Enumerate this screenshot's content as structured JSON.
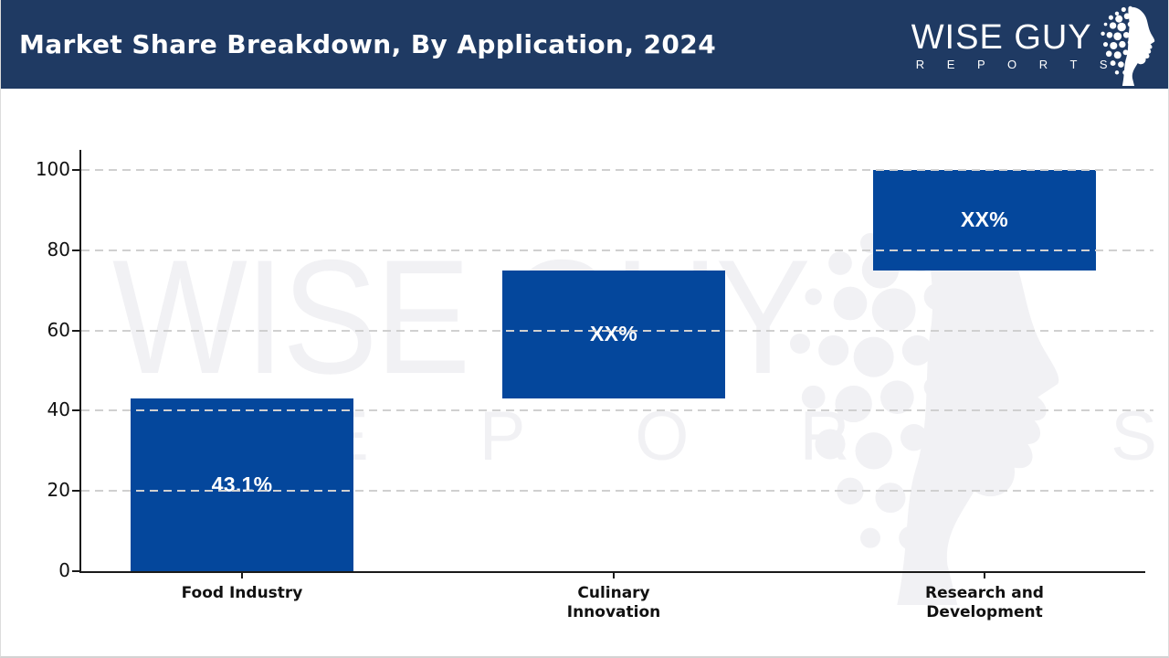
{
  "header": {
    "title": "Market Share Breakdown, By Application, 2024",
    "logo": {
      "wordmark": "WISE GUY",
      "subtext": "R E P O R T S"
    }
  },
  "watermark": {
    "wordmark": "WISE GUY",
    "subtext": "R E P O R T S"
  },
  "chart_data": {
    "type": "bar",
    "variant": "floating-waterfall",
    "title": "Market Share Breakdown, By Application, 2024",
    "categories": [
      "Food Industry",
      "Culinary Innovation",
      "Research and Development"
    ],
    "category_lines": [
      [
        "Food Industry"
      ],
      [
        "Culinary",
        "Innovation"
      ],
      [
        "Research and",
        "Development"
      ]
    ],
    "bars": [
      {
        "category": "Food Industry",
        "from": 0,
        "to": 43.1,
        "label": "43.1%"
      },
      {
        "category": "Culinary Innovation",
        "from": 43.1,
        "to": 75,
        "label": "XX%"
      },
      {
        "category": "Research and Development",
        "from": 75,
        "to": 100,
        "label": "XX%"
      }
    ],
    "ylim": [
      0,
      100
    ],
    "yticks": [
      0,
      20,
      40,
      60,
      80,
      100
    ],
    "xlabel": "",
    "ylabel": "",
    "grid": "dashed-horizontal",
    "legend": "none"
  },
  "colors": {
    "header_bg": "#1f3a63",
    "header_text": "#ffffff",
    "bar_fill": "#04479c",
    "bar_label": "#ffffff",
    "axis": "#1a1a1a",
    "grid": "#d0d0d0",
    "watermark": "#f1f1f4",
    "tick_text": "#111111"
  }
}
